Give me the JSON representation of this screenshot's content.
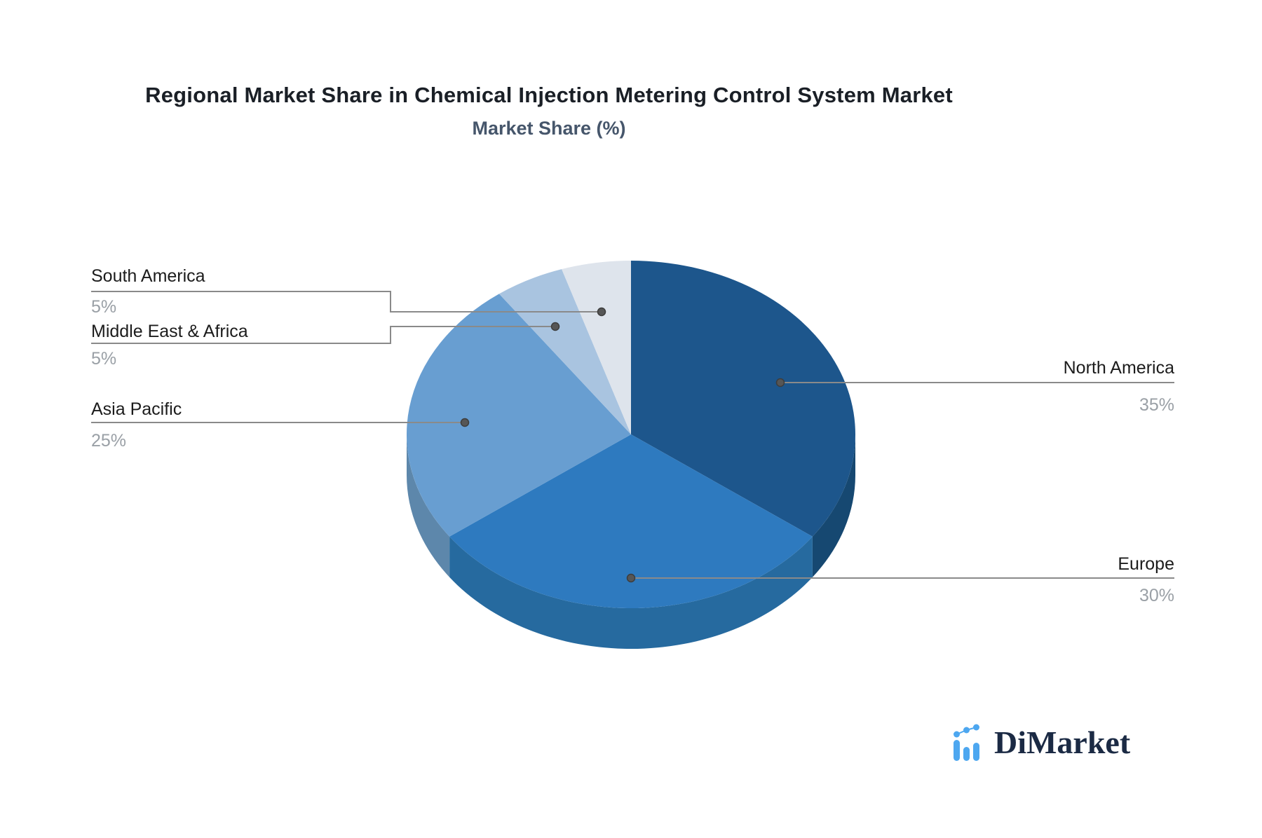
{
  "header": {
    "title": "Regional Market Share in Chemical Injection Metering Control System Market",
    "subtitle": "Market Share (%)"
  },
  "chart_data": {
    "type": "pie",
    "title": "Regional Market Share in Chemical Injection Metering Control System Market",
    "subtitle": "Market Share (%)",
    "unit": "%",
    "start_angle_deg": 0,
    "direction": "clockwise",
    "labels": [
      "North America",
      "Europe",
      "Asia Pacific",
      "Middle East & Africa",
      "South America"
    ],
    "values": [
      35,
      30,
      25,
      5,
      5
    ],
    "slice_colors": [
      "#1d568c",
      "#2e7abf",
      "#689ed1",
      "#a9c4e0",
      "#dee4ec"
    ],
    "rim_colors": [
      "#164871",
      "#266a9f",
      "#5d87ab",
      "#8aa8c4",
      "#b9c3d0"
    ],
    "leader_line_color": "#8a8a8a",
    "leader_dot_color": "#565656"
  },
  "callouts": {
    "north_america": {
      "name": "North America",
      "pct": "35%"
    },
    "europe": {
      "name": "Europe",
      "pct": "30%"
    },
    "asia_pacific": {
      "name": "Asia Pacific",
      "pct": "25%"
    },
    "middle_east_africa": {
      "name": "Middle East & Africa",
      "pct": "5%"
    },
    "south_america": {
      "name": "South America",
      "pct": "5%"
    }
  },
  "logo": {
    "text": "DiMarket",
    "icon": "bar-chart-with-trend-dots",
    "icon_color": "#4da7f0"
  }
}
